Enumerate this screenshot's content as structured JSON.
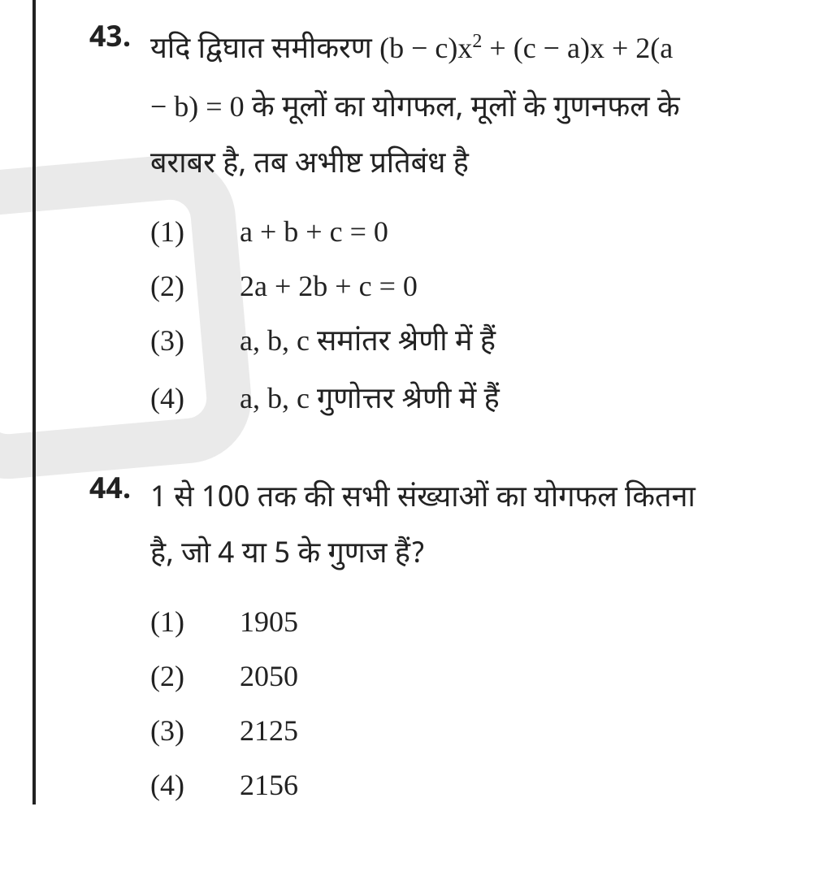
{
  "style": {
    "background_color": "#ffffff",
    "text_color": "#222222",
    "rule_color": "#222222",
    "watermark_color": "#888888",
    "watermark_opacity": 0.18,
    "body_fontsize": 36,
    "qnum_fontsize": 36,
    "qnum_fontweight": "bold",
    "line_height": 1.9
  },
  "questions": [
    {
      "number": "43.",
      "text_line1_prefix": "यदि द्विघात समीकरण ",
      "text_line1_math": "(b − c)x² + (c − a)x + 2(a",
      "text_line2_math": "− b) = 0",
      "text_line2_rest": " के मूलों का योगफल, मूलों के गुणनफल के",
      "text_line3": "बराबर है, तब अभीष्ट प्रतिबंध है",
      "options": [
        {
          "num": "(1)",
          "text": "a + b + c = 0",
          "type": "math"
        },
        {
          "num": "(2)",
          "text": "2a + 2b + c = 0",
          "type": "math"
        },
        {
          "num": "(3)",
          "text_latin": "a, b, c ",
          "text_dev": "समांतर श्रेणी में हैं",
          "type": "mixed"
        },
        {
          "num": "(4)",
          "text_latin": "a, b, c ",
          "text_dev": "गुणोत्तर श्रेणी में हैं",
          "type": "mixed"
        }
      ]
    },
    {
      "number": "44.",
      "text_line1": "1 से 100 तक की सभी संख्याओं का योगफल कितना",
      "text_line2": "है, जो 4 या 5 के गुणज हैं?",
      "options": [
        {
          "num": "(1)",
          "text": "1905",
          "type": "math"
        },
        {
          "num": "(2)",
          "text": "2050",
          "type": "math"
        },
        {
          "num": "(3)",
          "text": "2125",
          "type": "math"
        },
        {
          "num": "(4)",
          "text": "2156",
          "type": "math"
        }
      ]
    }
  ]
}
